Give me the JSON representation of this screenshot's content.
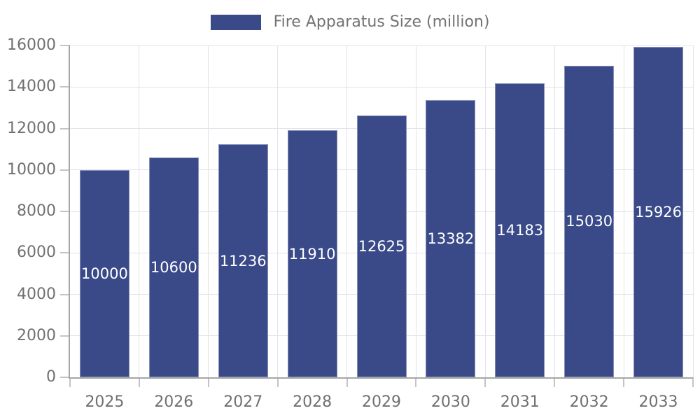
{
  "chart_data": {
    "type": "bar",
    "title": "",
    "legend": "Fire Apparatus Size (million)",
    "legend_position": "top-center",
    "categories": [
      "2025",
      "2026",
      "2027",
      "2028",
      "2029",
      "2030",
      "2031",
      "2032",
      "2033"
    ],
    "values": [
      10000,
      10600,
      11236,
      11910,
      12625,
      13382,
      14183,
      15030,
      15926
    ],
    "xlabel": "",
    "ylabel": "",
    "ylim": [
      0,
      16000
    ],
    "yticks": [
      0,
      2000,
      4000,
      6000,
      8000,
      10000,
      12000,
      14000,
      16000
    ],
    "grid": true,
    "bar_label_position": "inside-center"
  },
  "colors": {
    "bar": "#3A4A89",
    "grid_line": "#E2E2EA",
    "axis_line": "#A6A6A6",
    "tick_mark": "#C4C4C4",
    "axis_text": "#707070",
    "legend_text": "#737373",
    "bar_label_text": "#FFFFFF",
    "background": "#FFFFFF"
  }
}
